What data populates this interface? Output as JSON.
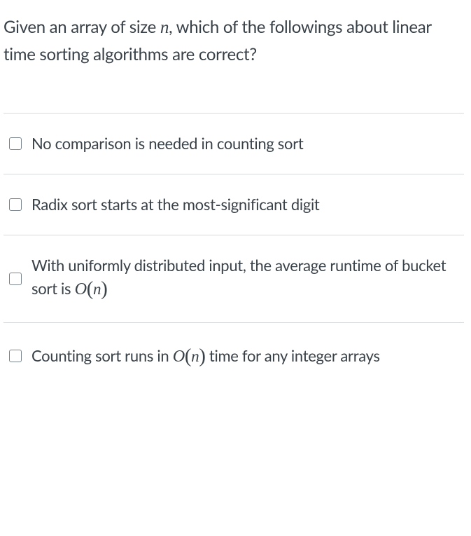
{
  "question": {
    "prefix": "Given an array of size ",
    "variable": "n",
    "suffix": ", which of the followings about linear time sorting algorithms are correct?"
  },
  "options": [
    {
      "text_before": "No comparison is needed in counting sort",
      "has_math": false,
      "text_after": ""
    },
    {
      "text_before": "Radix sort starts at the most-significant digit",
      "has_math": false,
      "text_after": ""
    },
    {
      "text_before": "With uniformly distributed input, the average runtime of bucket sort is ",
      "has_math": true,
      "math_O": "O",
      "math_var": "n",
      "text_after": ""
    },
    {
      "text_before": "Counting sort runs in ",
      "has_math": true,
      "math_O": "O",
      "math_var": "n",
      "text_after": " time for any integer arrays"
    }
  ],
  "colors": {
    "text": "#3a4249",
    "border": "#d7dadd",
    "checkbox_border": "#7a848c",
    "background": "#ffffff"
  }
}
